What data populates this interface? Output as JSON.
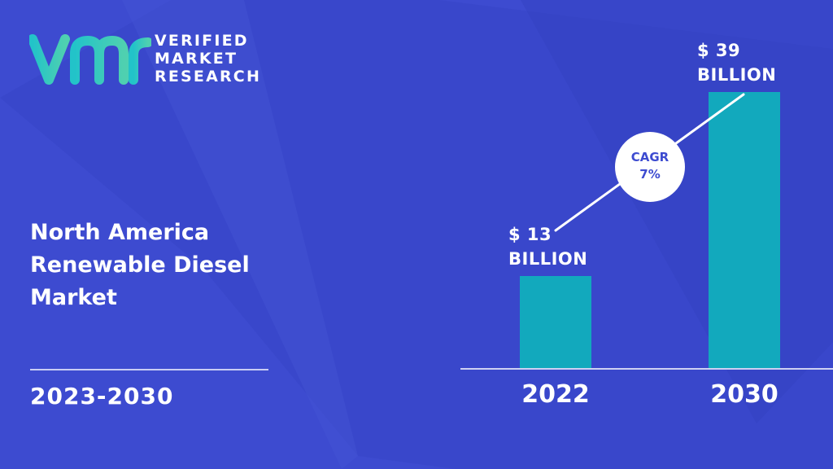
{
  "brand": {
    "line1": "VERIFIED",
    "line2": "MARKET",
    "line3": "RESEARCH",
    "logo_text": "vmr"
  },
  "title_lines": [
    "North America",
    "Renewable Diesel",
    "Market"
  ],
  "period": "2023-2030",
  "colors": {
    "background": "#3d4bd0",
    "bar": "#12a9bd",
    "text": "#ffffff",
    "badge_text": "#3d4bd0"
  },
  "cagr": {
    "label": "CAGR",
    "value": "7%"
  },
  "chart_data": {
    "type": "bar",
    "categories": [
      "2022",
      "2030"
    ],
    "values": [
      13,
      39
    ],
    "unit": "BILLION",
    "data_labels": [
      {
        "line1": "$ 13",
        "line2": "BILLION"
      },
      {
        "line1": "$ 39",
        "line2": "BILLION"
      }
    ],
    "ylim": [
      0,
      39
    ],
    "grid": false,
    "legend": "none",
    "title": "",
    "xlabel": "",
    "ylabel": ""
  }
}
